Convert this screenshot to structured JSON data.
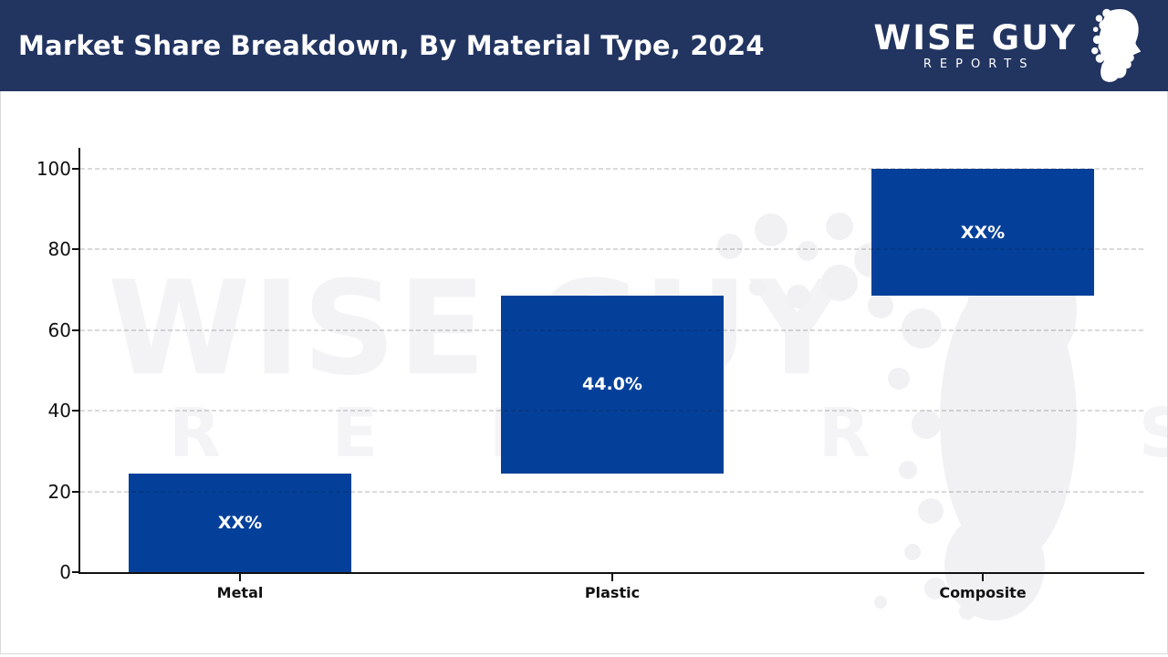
{
  "header": {
    "title": "Market Share Breakdown, By Material Type, 2024",
    "logo": {
      "line1": "WISE GUY",
      "line2": "REPORTS"
    }
  },
  "watermark": {
    "line1": "WISE GUY",
    "line2": "R E P O R T S"
  },
  "colors": {
    "header_bg": "#223460",
    "bar_fill": "#04409a",
    "bar_label_text": "#ffffff",
    "axis": "#111111",
    "watermark_gray": "#f3f3f5"
  },
  "chart_data": {
    "type": "bar",
    "subtype": "floating-stacked-percentage",
    "title": "Market Share Breakdown, By Material Type, 2024",
    "categories": [
      "Metal",
      "Plastic",
      "Composite"
    ],
    "bars": [
      {
        "category": "Metal",
        "start": 0,
        "end": 24.5,
        "value": 24.5,
        "label": "XX%"
      },
      {
        "category": "Plastic",
        "start": 24.5,
        "end": 68.5,
        "value": 44.0,
        "label": "44.0%"
      },
      {
        "category": "Composite",
        "start": 68.5,
        "end": 100,
        "value": 31.5,
        "label": "XX%"
      }
    ],
    "ylim": [
      0,
      100
    ],
    "yticks": [
      0,
      20,
      40,
      60,
      80,
      100
    ],
    "xlabel": "",
    "ylabel": "",
    "grid": "dashed-horizontal",
    "legend": "none"
  }
}
